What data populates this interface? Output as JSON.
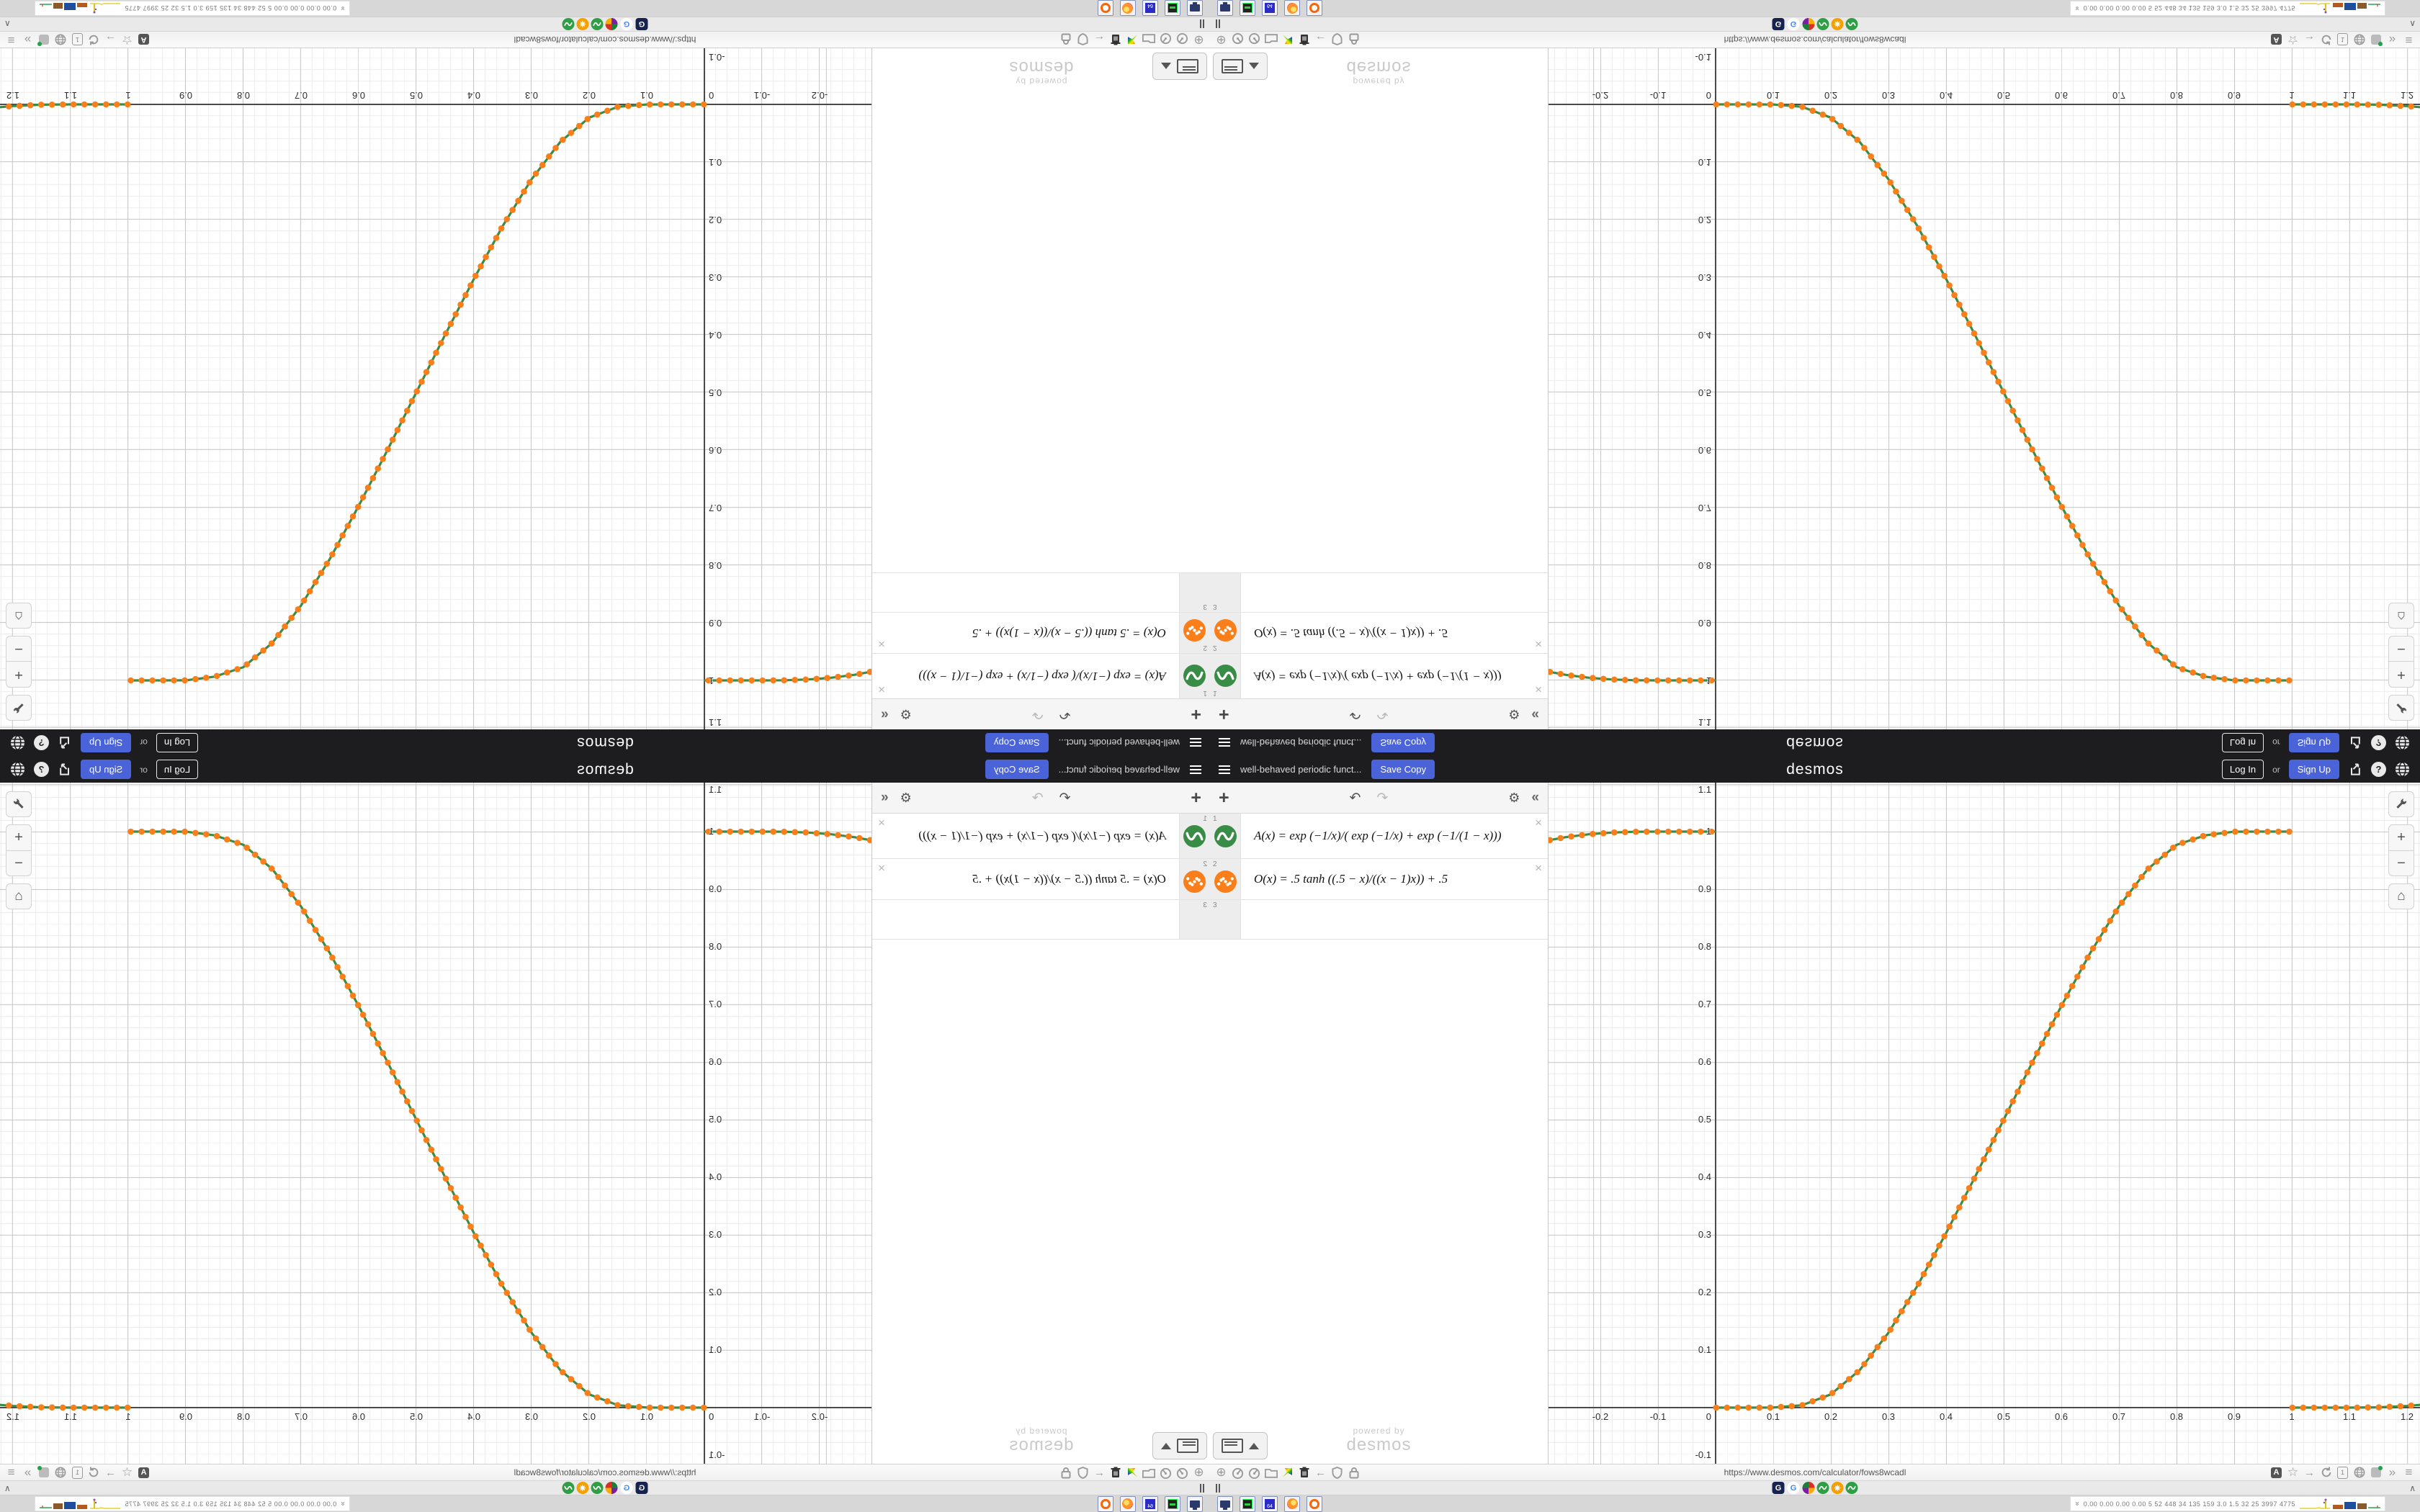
{
  "window": {
    "header": {
      "menu_icon": "hamburger",
      "title": "well-behaved periodic funct...",
      "save_copy_label": "Save Copy",
      "logo": "desmos",
      "log_in_label": "Log In",
      "or_label": "or",
      "sign_up_label": "Sign Up",
      "right_icons": [
        "share-icon",
        "help-icon",
        "globe-icon"
      ],
      "accent_color": "#4a63d8",
      "background_color": "#1d1d1f"
    },
    "expressions_panel": {
      "toolbar": {
        "add": "+",
        "undo": "undo-arrow",
        "redo": "redo-arrow",
        "settings": "gear",
        "collapse": "«"
      },
      "rows": [
        {
          "index": "1",
          "style": "solid-wave",
          "color": "#388c46",
          "latex": "A(x) = exp (−1/x)/( exp (−1/x) + exp (−1/(1 − x)))",
          "close": "×"
        },
        {
          "index": "2",
          "style": "dotted-wave",
          "color": "#fa7e19",
          "latex": "O(x) = .5 tanh ((.5 − x)/((x − 1)x)) + .5",
          "close": "×"
        },
        {
          "index": "3",
          "style": "none",
          "color": "",
          "latex": "",
          "close": ""
        }
      ],
      "watermark": {
        "line1": "powered by",
        "line2": "desmos"
      }
    },
    "graph_controls": [
      "wrench-icon",
      "zoom-in-icon",
      "zoom-out-icon",
      "home-icon"
    ],
    "chart_data": {
      "type": "line",
      "title": "",
      "xlabel": "",
      "ylabel": "",
      "x_range": [
        -0.2875,
        1.2225
      ],
      "y_range": [
        -0.0975,
        1.085
      ],
      "grid": {
        "major_step": 0.1,
        "minor_step": 0.02,
        "visible": true
      },
      "x_ticks": [
        -0.2,
        -0.1,
        0,
        0.1,
        0.2,
        0.3,
        0.4,
        0.5,
        0.6,
        0.7,
        0.8,
        0.9,
        1,
        1.1,
        1.2
      ],
      "y_ticks": [
        -0.1,
        0.1,
        0.2,
        0.3,
        0.4,
        0.5,
        0.6,
        0.7,
        0.8,
        0.9,
        1,
        1.1
      ],
      "series": [
        {
          "name": "A(x)",
          "color": "#388c46",
          "style": "solid",
          "branches": [
            [
              [
                -0.2875,
                0.9853
              ],
              [
                -0.26,
                0.9904
              ],
              [
                -0.22,
                0.9954
              ],
              [
                -0.18,
                0.9984
              ],
              [
                -0.14,
                0.9997
              ],
              [
                -0.1,
                0.99995
              ],
              [
                -0.06,
                1
              ],
              [
                -0.02,
                1
              ],
              [
                -0.001,
                1
              ]
            ],
            [
              [
                0.001,
                0
              ],
              [
                0.05,
                0
              ],
              [
                0.1,
                0.0001
              ],
              [
                0.15,
                0.0041
              ],
              [
                0.2,
                0.023
              ],
              [
                0.25,
                0.065
              ],
              [
                0.3,
                0.13
              ],
              [
                0.35,
                0.211
              ],
              [
                0.4,
                0.303
              ],
              [
                0.45,
                0.4
              ],
              [
                0.5,
                0.5
              ],
              [
                0.55,
                0.6
              ],
              [
                0.6,
                0.697
              ],
              [
                0.65,
                0.789
              ],
              [
                0.7,
                0.87
              ],
              [
                0.75,
                0.935
              ],
              [
                0.8,
                0.977
              ],
              [
                0.85,
                0.9935
              ],
              [
                0.9,
                0.9999
              ],
              [
                0.95,
                1
              ],
              [
                0.999,
                1
              ]
            ],
            [
              [
                1.001,
                0
              ],
              [
                1.05,
                0
              ],
              [
                1.1,
                0
              ],
              [
                1.15,
                0.0005
              ],
              [
                1.2,
                0.0029
              ],
              [
                1.2225,
                0.0047
              ]
            ]
          ]
        },
        {
          "name": "O(x)",
          "color": "#fa7e19",
          "style": "dotted",
          "branches_ref": 0
        }
      ],
      "legend": "none"
    },
    "chrome": {
      "address_bar": {
        "url": "https://www.desmos.com/calculator/fows8wcadl",
        "left_icons": [
          "globe-plus-icon",
          "gauge-icon",
          "gauge-icon",
          "folder-icon",
          "rainbow-pin-icon",
          "trash-icon",
          "arrow-left-icon",
          "shield-icon",
          "lock-icon"
        ],
        "right_icons": [
          "translate-icon",
          "star-icon",
          "arrow-right-icon",
          "reload-icon",
          "bin-1-icon",
          "globe-grid-icon",
          "puzzle-icon",
          "chevrons-right-icon",
          "menu-lines-icon"
        ]
      },
      "tab_strip": {
        "handle": "drag-handle",
        "favicons": [
          "navy-g",
          "google-g",
          "color-pie",
          "desmos-wave",
          "orange-gear",
          "desmos-wave"
        ],
        "collapse": "∧"
      },
      "taskbar": {
        "apps": [
          "monitor-app",
          "package-app",
          "floppy-64-app",
          "firefox-app",
          "blender-app"
        ],
        "stats": {
          "icon": "double-chevron-up",
          "text": "0.00 0.00 0.00 0.00   5   52   448   34   135   159   3.0   1.5   32   25   3997 4775",
          "chart_elements": [
            "yellow-line",
            "purple-spike",
            "orange-bar",
            "blue-bar",
            "brown-bar",
            "green-line"
          ]
        }
      }
    }
  },
  "composite": {
    "layout": "2x2 mirror",
    "quadrants": [
      "top-left:rotated-180",
      "top-right:flipped-vertical",
      "bottom-left:flipped-horizontal",
      "bottom-right:original"
    ]
  }
}
